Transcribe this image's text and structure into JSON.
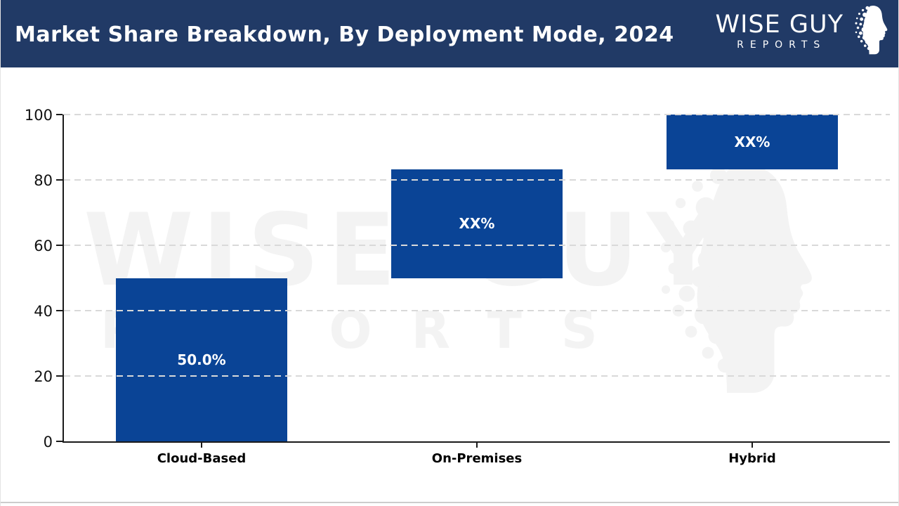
{
  "header": {
    "title": "Market Share Breakdown, By Deployment Mode, 2024",
    "logo": {
      "line1": "WISE GUY",
      "line2": "REPORTS"
    }
  },
  "watermark": {
    "line1": "WISE GUY",
    "line2": "REPORTS"
  },
  "chart_data": {
    "type": "bar",
    "subtype": "floating-waterfall",
    "title": "Market Share Breakdown, By Deployment Mode, 2024",
    "categories": [
      "Cloud-Based",
      "On-Premises",
      "Hybrid"
    ],
    "segments": [
      {
        "category": "Cloud-Based",
        "start": 0,
        "end": 50,
        "label": "50.0%"
      },
      {
        "category": "On-Premises",
        "start": 50,
        "end": 83.3,
        "label": "XX%"
      },
      {
        "category": "Hybrid",
        "start": 83.3,
        "end": 100,
        "label": "XX%"
      }
    ],
    "xlabel": "",
    "ylabel": "",
    "ylim": [
      0,
      100
    ],
    "yticks": [
      0,
      20,
      40,
      60,
      80,
      100
    ],
    "grid": "horizontal-dashed",
    "legend": "none",
    "bar_color": "#0a4496",
    "bar_label_color": "#ffffff"
  },
  "colors": {
    "header_bg": "#213a66",
    "bar": "#0a4496",
    "grid": "#d9d9d9",
    "axis": "#1a1a1a",
    "watermark": "#f3f3f3"
  }
}
